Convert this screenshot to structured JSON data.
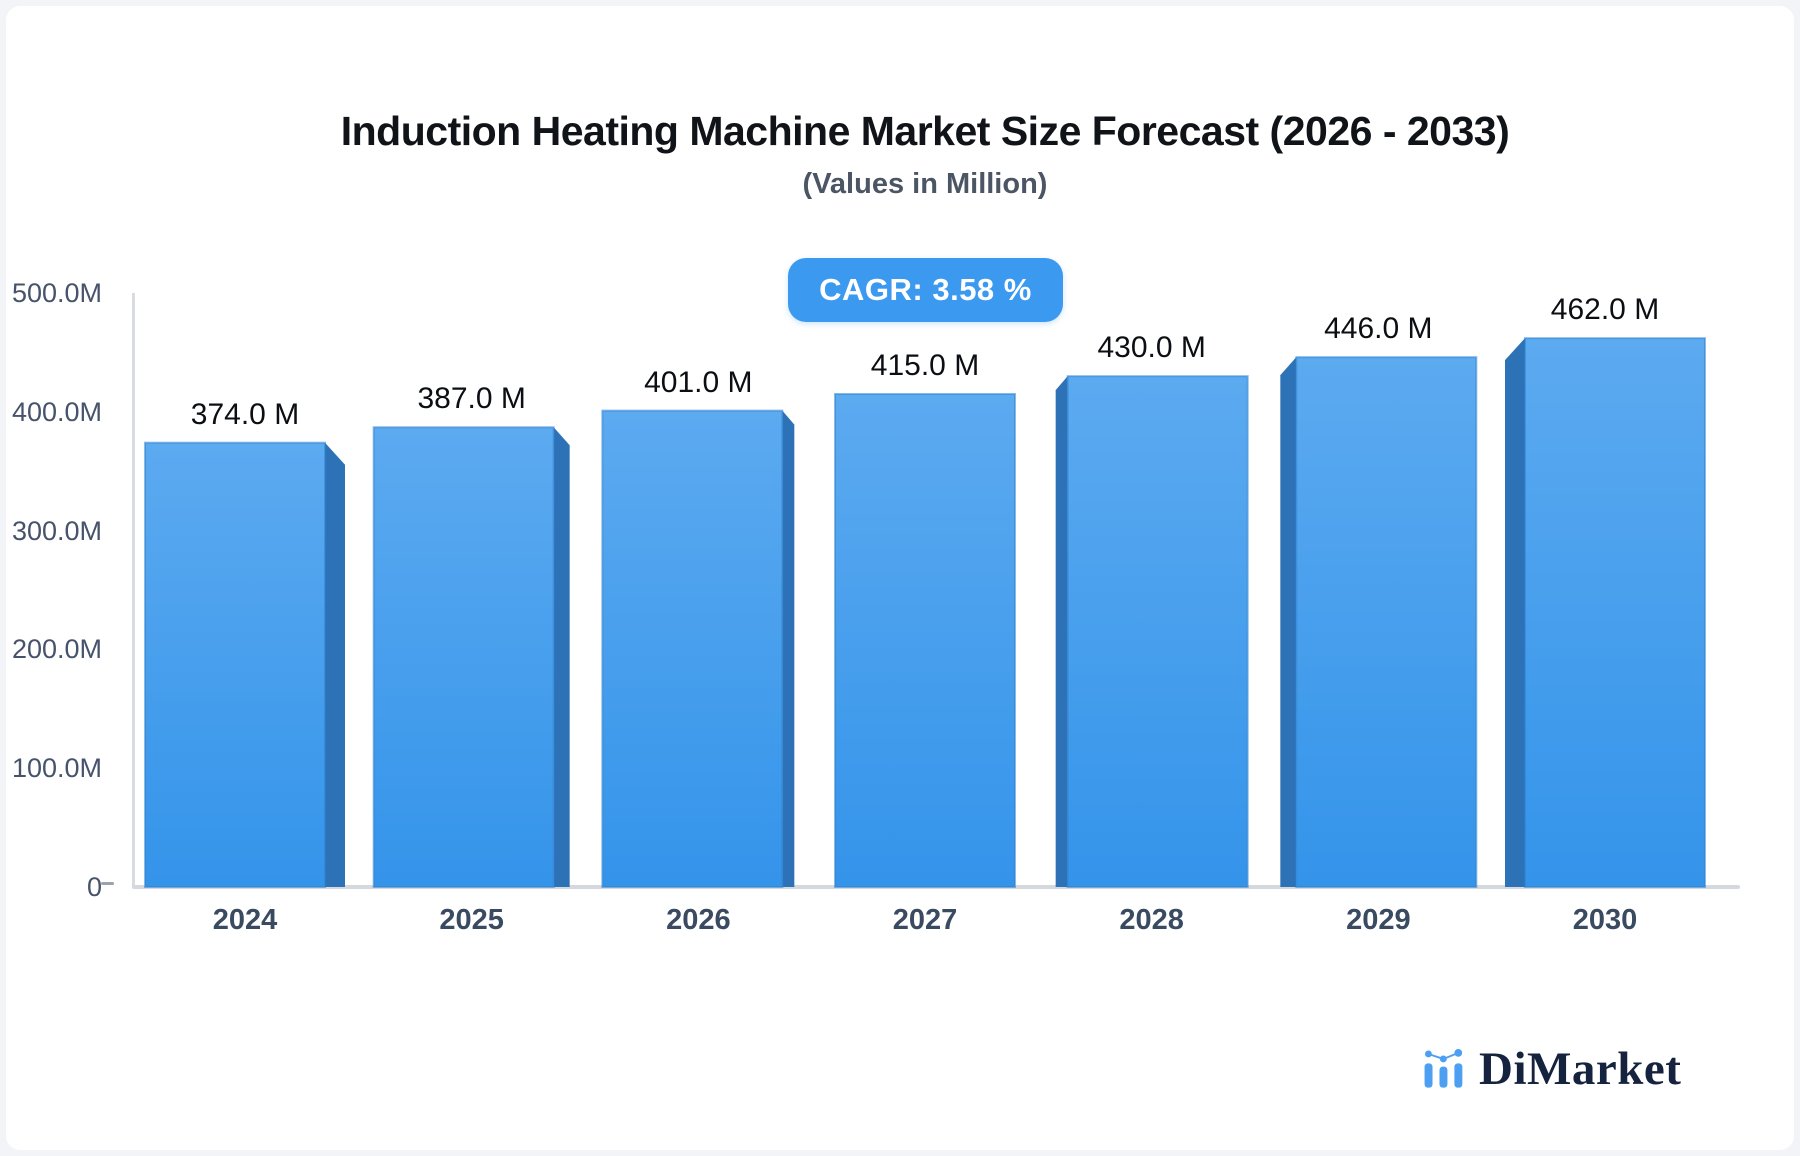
{
  "page": {
    "background": "#f2f4f7",
    "card_background": "#ffffff"
  },
  "header": {
    "title": "Induction Heating Machine Market Size Forecast (2026 - 2033)",
    "subtitle": "(Values in Million)"
  },
  "badge": {
    "label": "CAGR: 3.58 %",
    "background": "#3b99f0",
    "text_color": "#ffffff"
  },
  "chart_data": {
    "type": "bar",
    "title": "Induction Heating Machine Market Size Forecast (2026 - 2033)",
    "subtitle": "(Values in Million)",
    "unit": "Million",
    "categories": [
      "2024",
      "2025",
      "2026",
      "2027",
      "2028",
      "2029",
      "2030"
    ],
    "values": [
      374,
      387,
      401,
      415,
      430,
      446,
      462
    ],
    "value_labels": [
      "374.0 M",
      "387.0 M",
      "401.0 M",
      "415.0 M",
      "430.0 M",
      "446.0 M",
      "462.0 M"
    ],
    "cagr": "3.58 %",
    "ylim": [
      0,
      500
    ],
    "yticks": [
      {
        "value": 0,
        "label": "0"
      },
      {
        "value": 100,
        "label": "100.0M"
      },
      {
        "value": 200,
        "label": "200.0M"
      },
      {
        "value": 300,
        "label": "300.0M"
      },
      {
        "value": 400,
        "label": "400.0M"
      },
      {
        "value": 500,
        "label": "500.0M"
      }
    ],
    "xlabel": "",
    "ylabel": "",
    "grid": false,
    "legend": false,
    "style": "3d-beveled-bars-center-perspective",
    "colors": {
      "bar_face_top": "#5caaf0",
      "bar_face_bottom": "#3494ea",
      "bar_face_edge": "#2e82cf",
      "bar_side": "#2d72b6",
      "axis_line": "#d5d8dc",
      "tick_text": "#46536b",
      "category_text": "#394a61",
      "value_text": "#0b0e12"
    }
  },
  "logo": {
    "text": "DiMarket",
    "icon": "mini-bar-line-chart-icon",
    "icon_color": "#4d9ff2",
    "text_color": "#16233f"
  }
}
